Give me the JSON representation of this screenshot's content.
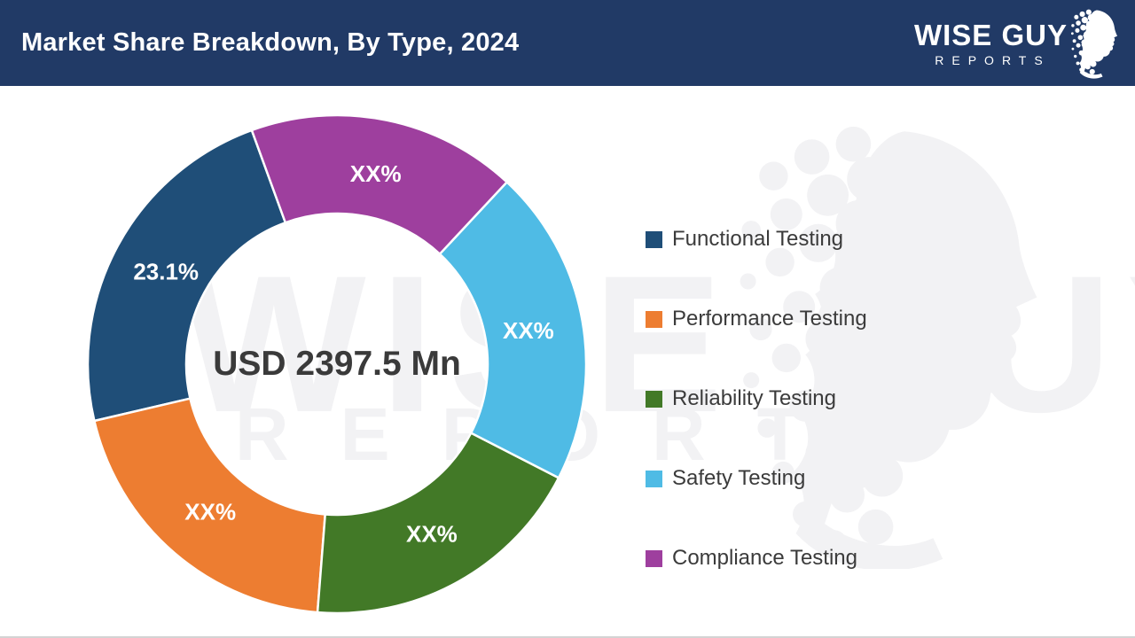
{
  "header": {
    "title": "Market Share Breakdown, By Type, 2024",
    "logo": {
      "brand_top": "WISE GUY",
      "brand_bottom": "REPORTS"
    },
    "background_color": "#213A66"
  },
  "watermark": {
    "line1": "WISE GUY",
    "line2": "REPORTS",
    "color": "#F2F2F4"
  },
  "chart_data": {
    "type": "pie",
    "subtype": "donut",
    "title": "Market Share Breakdown, By Type, 2024",
    "center_label": "USD 2397.5 Mn",
    "start_angle_deg": 110,
    "direction": "counterclockwise",
    "inner_radius_ratio": 0.605,
    "label_radius_ratio": 0.78,
    "segment_gap_color": "#FFFFFF",
    "legend_position": "right",
    "series": [
      {
        "name": "Functional Testing",
        "value_pct": 23.1,
        "label": "23.1%",
        "color": "#1F4E78"
      },
      {
        "name": "Performance Testing",
        "value_pct": 20.1,
        "label": "XX%",
        "color": "#ED7D31"
      },
      {
        "name": "Reliability Testing",
        "value_pct": 18.7,
        "label": "XX%",
        "color": "#427927"
      },
      {
        "name": "Safety Testing",
        "value_pct": 20.6,
        "label": "XX%",
        "color": "#4FBBE5"
      },
      {
        "name": "Compliance Testing",
        "value_pct": 17.5,
        "label": "XX%",
        "color": "#9E3F9E"
      }
    ]
  },
  "colors": {
    "title_text": "#FFFFFF",
    "center_text": "#3A3A3A",
    "legend_text": "#3B3B3B",
    "bottom_line": "#D3D3D3"
  }
}
